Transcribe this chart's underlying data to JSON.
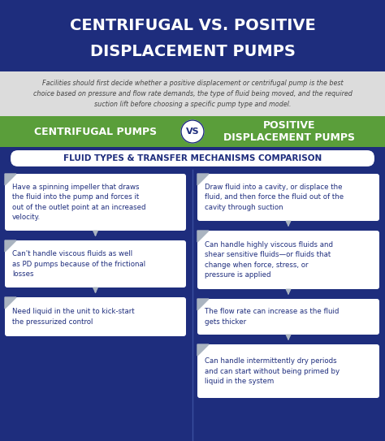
{
  "title_line1": "CENTRIFUGAL VS. POSITIVE",
  "title_line2": "DISPLACEMENT PUMPS",
  "title_bg": "#1e2d7d",
  "title_color": "#ffffff",
  "subtitle_text": "Facilities should first decide whether a positive displacement or centrifugal pump is the best\nchoice based on pressure and flow rate demands, the type of fluid being moved, and the required\nsuction lift before choosing a specific pump type and model.",
  "subtitle_bg": "#dcdcdc",
  "subtitle_color": "#444444",
  "left_header": "CENTRIFUGAL PUMPS",
  "right_header": "POSITIVE\nDISPLACEMENT PUMPS",
  "vs_text": "VS",
  "header_green": "#5a9e3a",
  "header_dark_blue": "#1e2d7d",
  "comparison_label": "FLUID TYPES & TRANSFER MECHANISMS COMPARISON",
  "comparison_label_color": "#1e2d7d",
  "main_bg": "#1e2d7d",
  "card_bg": "#ffffff",
  "card_text_color": "#1e2d7d",
  "left_points": [
    "Have a spinning impeller that draws\nthe fluid into the pump and forces it\nout of the outlet point at an increased\nvelocity.",
    "Can't handle viscous fluids as well\nas PD pumps because of the frictional\nlosses",
    "Need liquid in the unit to kick-start\nthe pressurized control"
  ],
  "right_points": [
    "Draw fluid into a cavity, or displace the\nfluid, and then force the fluid out of the\ncavity through suction",
    "Can handle highly viscous fluids and\nshear sensitive fluids—or fluids that\nchange when force, stress, or\npressure is applied",
    "The flow rate can increase as the fluid\ngets thicker",
    "Can handle intermittently dry periods\nand can start without being primed by\nliquid in the system"
  ],
  "tab_color": "#aab4c0",
  "arrow_color": "#aab4c0",
  "fig_width": 4.74,
  "fig_height": 5.43,
  "dpi": 100
}
